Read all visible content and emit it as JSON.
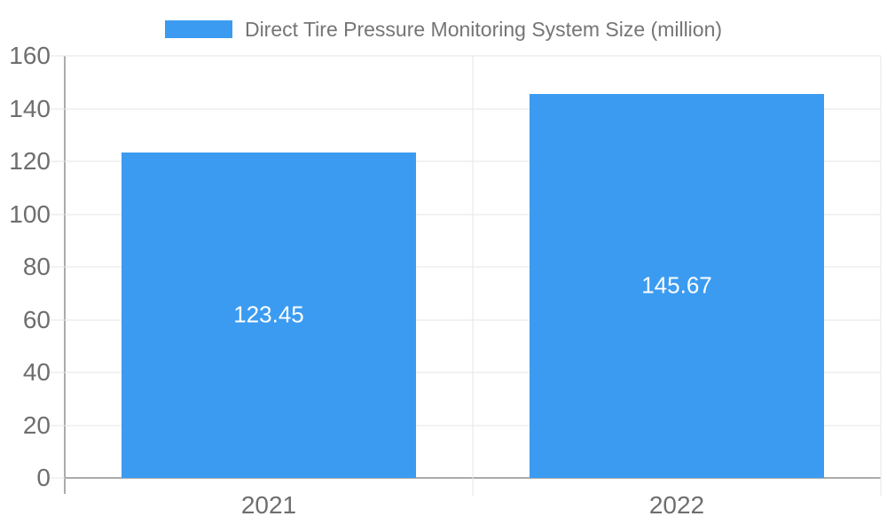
{
  "legend": {
    "label": "Direct Tire Pressure Monitoring System Size (million)"
  },
  "chart_data": {
    "type": "bar",
    "title": "Direct Tire Pressure Monitoring System Size (million)",
    "categories": [
      "2021",
      "2022"
    ],
    "series": [
      {
        "name": "Direct Tire Pressure Monitoring System Size (million)",
        "values": [
          123.45,
          145.67
        ]
      }
    ],
    "values": [
      123.45,
      145.67
    ],
    "value_labels": [
      "123.45",
      "145.67"
    ],
    "xlabel": "",
    "ylabel": "",
    "ylim": [
      0,
      160
    ],
    "ytick_step": 20,
    "ytick_labels": [
      "0",
      "20",
      "40",
      "60",
      "80",
      "100",
      "120",
      "140",
      "160"
    ],
    "grid": true,
    "legend_position": "top-center",
    "bar_value_labels_inside": true
  },
  "colors": {
    "bar": "#3B9BF1",
    "value_label": "#FFFFFF",
    "axis_line": "#ABABAB",
    "gridline": "#E6E6E6",
    "tick_label": "#6E6E6E",
    "legend_text": "#757575",
    "background": "#FFFFFF"
  }
}
